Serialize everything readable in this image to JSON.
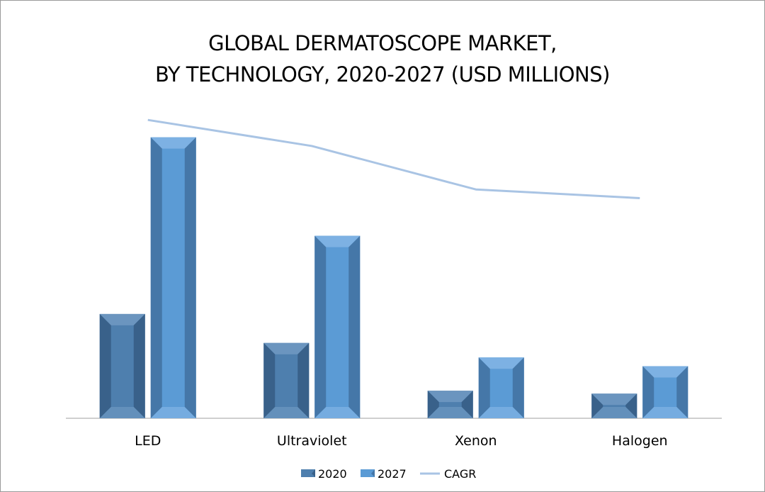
{
  "chart_data": {
    "type": "bar",
    "title_lines": [
      "GLOBAL DERMATOSCOPE MARKET,",
      "BY TECHNOLOGY, 2020-2027 (USD MILLIONS)"
    ],
    "categories": [
      "LED",
      "Ultraviolet",
      "Xenon",
      "Halogen"
    ],
    "series": [
      {
        "name": "2020",
        "type": "bar",
        "values": [
          36,
          26,
          9.5,
          8.5
        ]
      },
      {
        "name": "2027",
        "type": "bar",
        "values": [
          97,
          63,
          21,
          18
        ]
      },
      {
        "name": "CAGR",
        "type": "line",
        "values": [
          103,
          94,
          79,
          76
        ]
      }
    ],
    "ylim": [
      0,
      105
    ],
    "grid": false,
    "legend_position": "bottom",
    "colors": {
      "2020_face": "#4e7fae",
      "2020_side": "#39618a",
      "2020_light": "#6b95bf",
      "2027_face": "#5b9bd5",
      "2027_side": "#4577a8",
      "2027_light": "#7db1e3",
      "cagr": "#a9c4e4",
      "axis": "#bfbfbf"
    }
  }
}
